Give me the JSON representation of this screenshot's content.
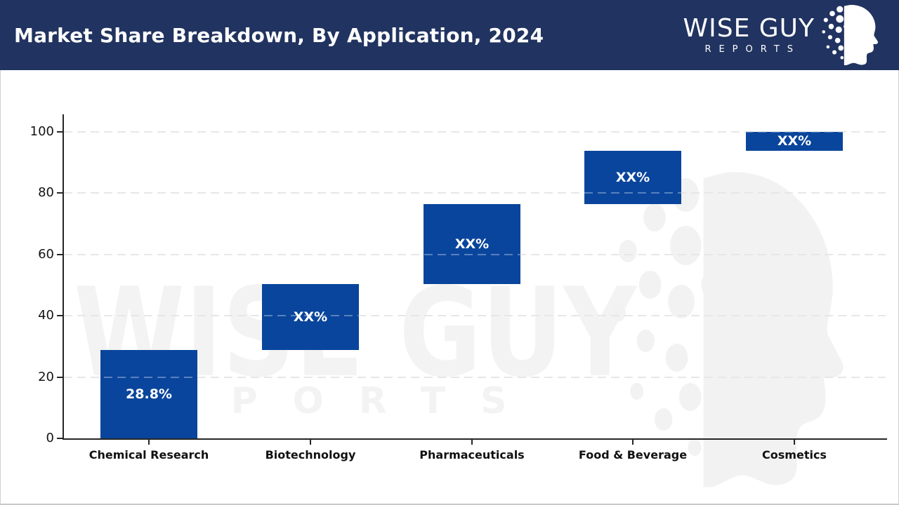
{
  "header": {
    "title": "Market Share Breakdown, By Application, 2024",
    "logo": {
      "line1": "WISE GUY",
      "line2": "REPORTS"
    }
  },
  "watermark": {
    "line1": "WISE GUY",
    "line2": "REPORTS"
  },
  "colors": {
    "header_bg": "#213360",
    "bar": "#09459C",
    "grid": "#DCDCDC",
    "axis": "#262626",
    "bar_label": "#FFFFFF",
    "watermark": "#F3F3F3"
  },
  "chart_data": {
    "type": "bar",
    "subtype": "waterfall",
    "title": "Market Share Breakdown, By Application, 2024",
    "categories": [
      "Chemical Research",
      "Biotechnology",
      "Pharmaceuticals",
      "Food & Beverage",
      "Cosmetics"
    ],
    "segments": [
      {
        "category": "Chemical Research",
        "start": 0,
        "end": 28.8,
        "label": "28.8%"
      },
      {
        "category": "Biotechnology",
        "start": 28.8,
        "end": 50.3,
        "label": "XX%"
      },
      {
        "category": "Pharmaceuticals",
        "start": 50.3,
        "end": 76.5,
        "label": "XX%"
      },
      {
        "category": "Food & Beverage",
        "start": 76.5,
        "end": 93.9,
        "label": "XX%"
      },
      {
        "category": "Cosmetics",
        "start": 93.9,
        "end": 100,
        "label": "XX%"
      }
    ],
    "xlabel": "",
    "ylabel": "",
    "ylim": [
      0,
      100
    ],
    "yticks": [
      0,
      20,
      40,
      60,
      80,
      100
    ],
    "grid": "horizontal dashed",
    "legend": "none",
    "value_labels_on_bars": true
  }
}
